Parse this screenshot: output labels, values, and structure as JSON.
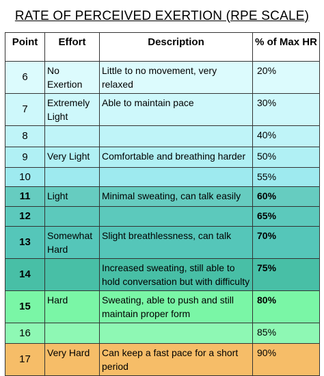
{
  "title": "RATE OF PERCEIVED EXERTION (RPE SCALE)",
  "headers": {
    "point": "Point",
    "effort": "Effort",
    "description": "Description",
    "hr": "% of Max HR"
  },
  "rows": [
    {
      "point": "6",
      "effort": "No Exertion",
      "description": "Little to no movement, very relaxed",
      "hr": "20%",
      "bg": "#dcfbfd",
      "bold": false
    },
    {
      "point": "7",
      "effort": "Extremely Light",
      "description": "Able to maintain pace",
      "hr": "30%",
      "bg": "#cef8fb",
      "bold": false
    },
    {
      "point": "8",
      "effort": "",
      "description": "",
      "hr": "40%",
      "bg": "#bff4f8",
      "bold": false
    },
    {
      "point": "9",
      "effort": "Very Light",
      "description": "Comfortable and breathing harder",
      "hr": "50%",
      "bg": "#b0f0f4",
      "bold": false
    },
    {
      "point": "10",
      "effort": "",
      "description": "",
      "hr": "55%",
      "bg": "#9eeaef",
      "bold": false
    },
    {
      "point": "11",
      "effort": "Light",
      "description": "Minimal sweating, can talk easily",
      "hr": "60%",
      "bg": "#66ccc0",
      "bold": true
    },
    {
      "point": "12",
      "effort": "",
      "description": "",
      "hr": "65%",
      "bg": "#5cc9bc",
      "bold": true
    },
    {
      "point": "13",
      "effort": "Somewhat Hard",
      "description": "Slight breathlessness, can talk",
      "hr": "70%",
      "bg": "#55c6b9",
      "bold": true
    },
    {
      "point": "14",
      "effort": "",
      "description": "Increased sweating, still able to hold conversation but with difficulty",
      "hr": "75%",
      "bg": "#48bfa6",
      "bold": true
    },
    {
      "point": "15",
      "effort": "Hard",
      "description": "Sweating, able to push and still maintain proper form",
      "hr": "80%",
      "bg": "#7af6a6",
      "bold": true
    },
    {
      "point": "16",
      "effort": "",
      "description": "",
      "hr": "85%",
      "bg": "#8ef8b4",
      "bold": false
    },
    {
      "point": "17",
      "effort": "Very Hard",
      "description": "Can keep a fast pace for a short period",
      "hr": "90%",
      "bg": "#f6bd68",
      "bold": false
    }
  ]
}
